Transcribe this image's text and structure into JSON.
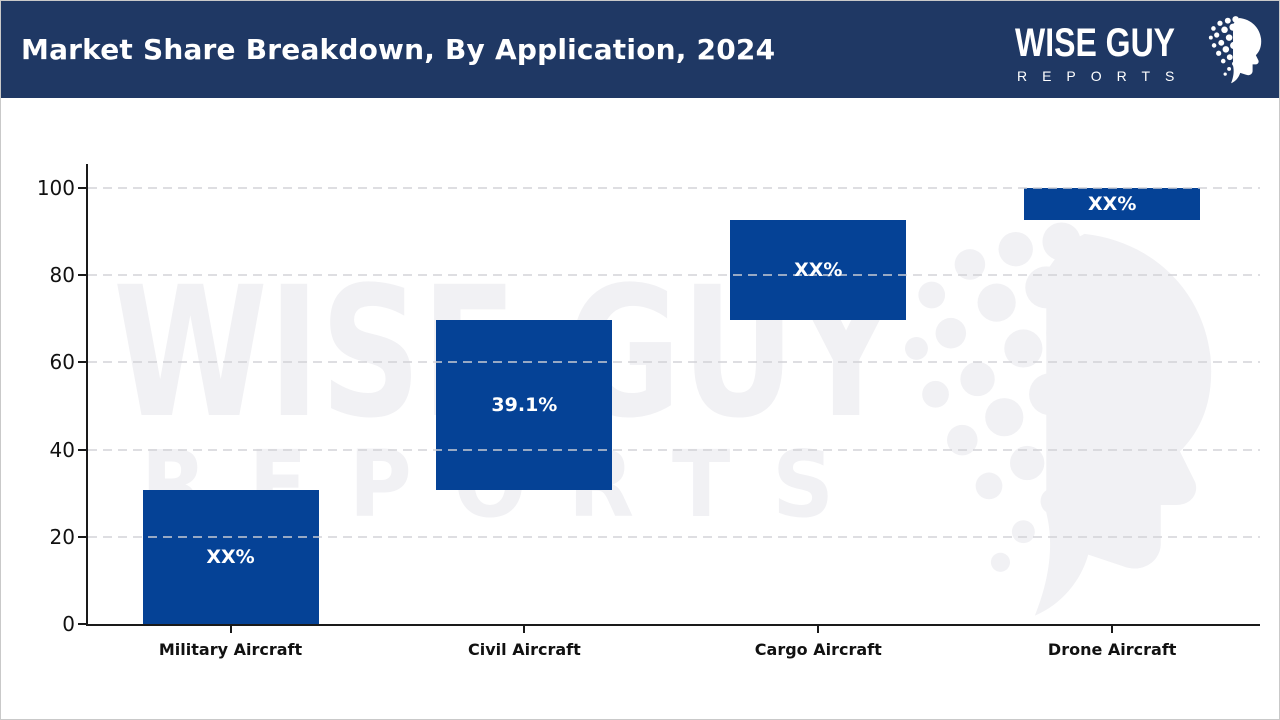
{
  "header": {
    "title": "Market Share Breakdown, By Application, 2024",
    "logo": {
      "brand": "WISE GUY",
      "sub": "REPORTS"
    }
  },
  "watermark": {
    "brand": "WISE GUY",
    "sub": "REPORTS"
  },
  "chart_data": {
    "type": "bar",
    "subtype": "floating-waterfall",
    "title": "Market Share Breakdown, By Application, 2024",
    "categories": [
      "Military Aircraft",
      "Civil Aircraft",
      "Cargo Aircraft",
      "Drone Aircraft"
    ],
    "segments": [
      {
        "category": "Military Aircraft",
        "start": 0,
        "end": 30.7,
        "value": 30.7,
        "label": "XX%"
      },
      {
        "category": "Civil Aircraft",
        "start": 30.7,
        "end": 69.8,
        "value": 39.1,
        "label": "39.1%"
      },
      {
        "category": "Cargo Aircraft",
        "start": 69.8,
        "end": 92.6,
        "value": 22.8,
        "label": "XX%"
      },
      {
        "category": "Drone Aircraft",
        "start": 92.6,
        "end": 100,
        "value": 7.4,
        "label": "XX%"
      }
    ],
    "y_ticks": [
      0,
      20,
      40,
      60,
      80,
      100
    ],
    "ylim": [
      0,
      105.5
    ],
    "xlabel": "",
    "ylabel": "",
    "grid": "horizontal-dashed",
    "legend": "none",
    "bar_color": "#054296",
    "bar_label_color": "#FFFFFF",
    "header_color": "#1F3864"
  }
}
